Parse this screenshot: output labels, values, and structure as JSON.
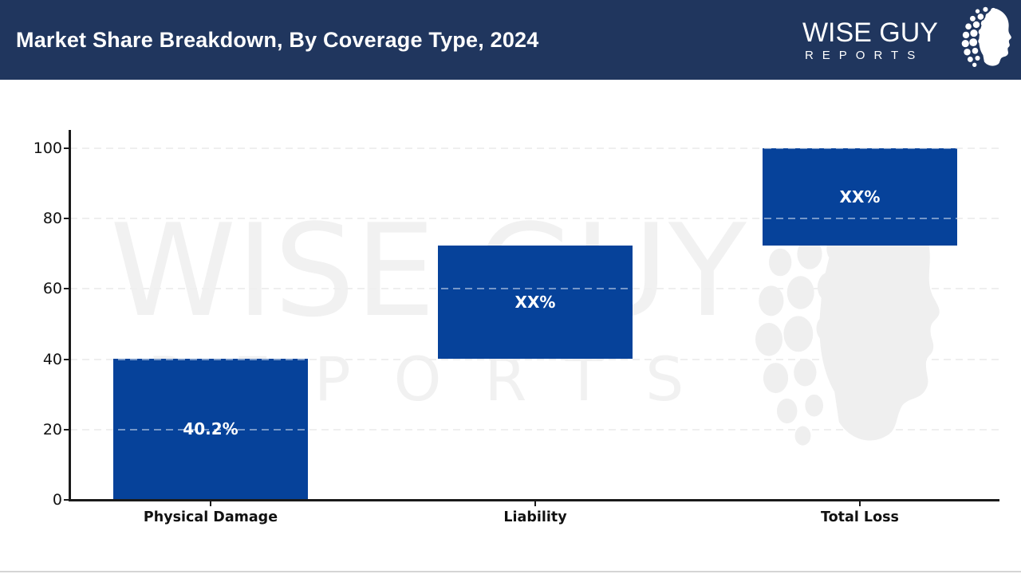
{
  "header": {
    "title": "Market Share Breakdown, By Coverage Type, 2024",
    "background": "#20365e",
    "logo": {
      "line1": "WISE GUY",
      "line2": "REPORTS"
    }
  },
  "watermark": {
    "line1": "WISE GUY",
    "line2": "REPORTS",
    "color": "#f1f1f1"
  },
  "chart_data": {
    "type": "bar",
    "subtype": "waterfall",
    "title": "Market Share Breakdown, By Coverage Type, 2024",
    "categories": [
      "Physical Damage",
      "Liability",
      "Total Loss"
    ],
    "series": [
      {
        "name": "Market Share",
        "segments": [
          {
            "category": "Physical Damage",
            "start": 0,
            "end": 40.2,
            "label": "40.2%"
          },
          {
            "category": "Liability",
            "start": 40.2,
            "end": 72.3,
            "label": "XX%"
          },
          {
            "category": "Total Loss",
            "start": 72.3,
            "end": 100,
            "label": "XX%"
          }
        ]
      }
    ],
    "xlabel": "",
    "ylabel": "",
    "ylim": [
      0,
      100
    ],
    "yticks": [
      0,
      20,
      40,
      60,
      80,
      100
    ],
    "grid": "horizontal-dashed",
    "legend": "none",
    "bar_color": "#06429a",
    "bar_label_color": "#ffffff",
    "axis_color": "#1a1a1a",
    "gridline_color": "#e2e2e2"
  }
}
